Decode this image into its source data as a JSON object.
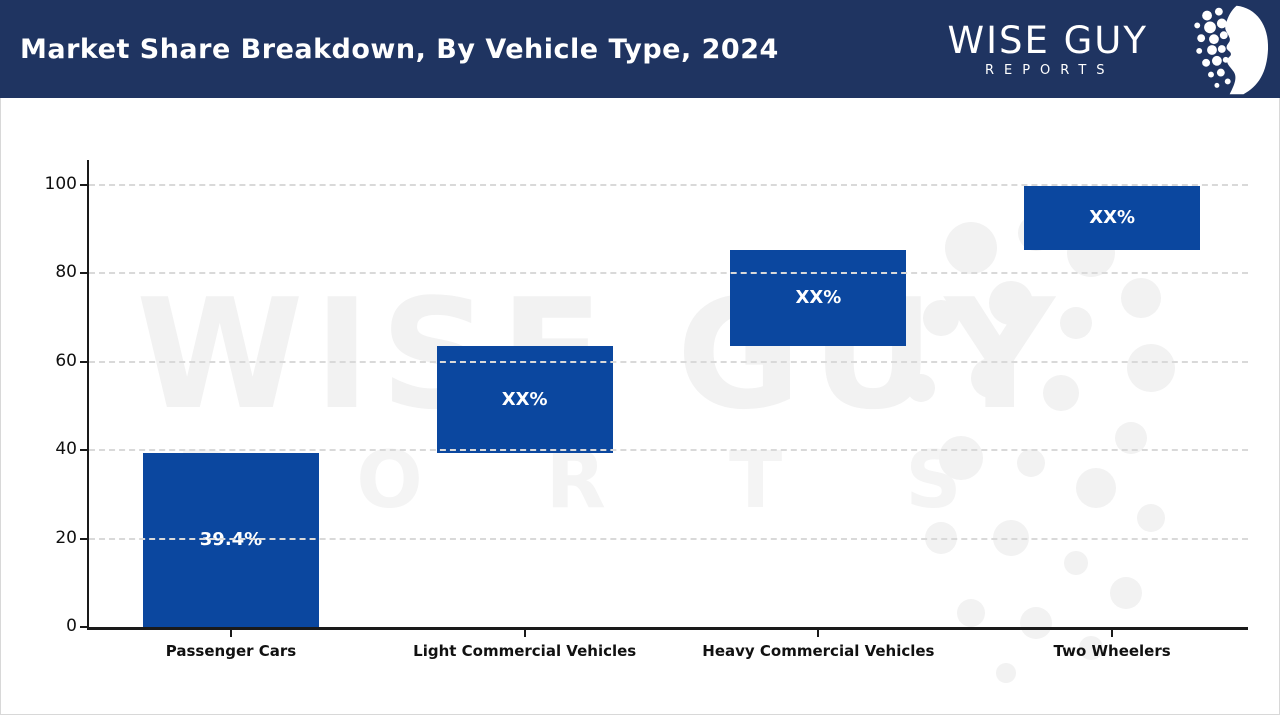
{
  "header": {
    "title": "Market Share Breakdown, By Vehicle Type, 2024",
    "logo_line1": "WISE GUY",
    "logo_line2": "REPORTS",
    "bg_color": "#1f3461"
  },
  "watermark": {
    "line1": "WISE GUY",
    "line2": "P O R T S"
  },
  "chart_data": {
    "type": "bar",
    "subtype": "waterfall",
    "title": "Market Share Breakdown, By Vehicle Type, 2024",
    "categories": [
      "Passenger Cars",
      "Light Commercial Vehicles",
      "Heavy Commercial Vehicles",
      "Two Wheelers"
    ],
    "segments": [
      {
        "category": "Passenger Cars",
        "start": 0,
        "end": 39.4,
        "value_label": "39.4%"
      },
      {
        "category": "Light Commercial Vehicles",
        "start": 39.4,
        "end": 63.6,
        "value_label": "XX%"
      },
      {
        "category": "Heavy Commercial Vehicles",
        "start": 63.6,
        "end": 85.3,
        "value_label": "XX%"
      },
      {
        "category": "Two Wheelers",
        "start": 85.3,
        "end": 99.8,
        "value_label": "XX%"
      }
    ],
    "yticks": [
      0,
      20,
      40,
      60,
      80,
      100
    ],
    "ylim": [
      0,
      106
    ],
    "xlabel": "",
    "ylabel": "",
    "grid": "horizontal-dashed",
    "legend": "none",
    "bar_color": "#0b479f",
    "value_label_color": "#ffffff",
    "axis_color": "#1a1a1a",
    "grid_color": "#d9d9d9"
  }
}
